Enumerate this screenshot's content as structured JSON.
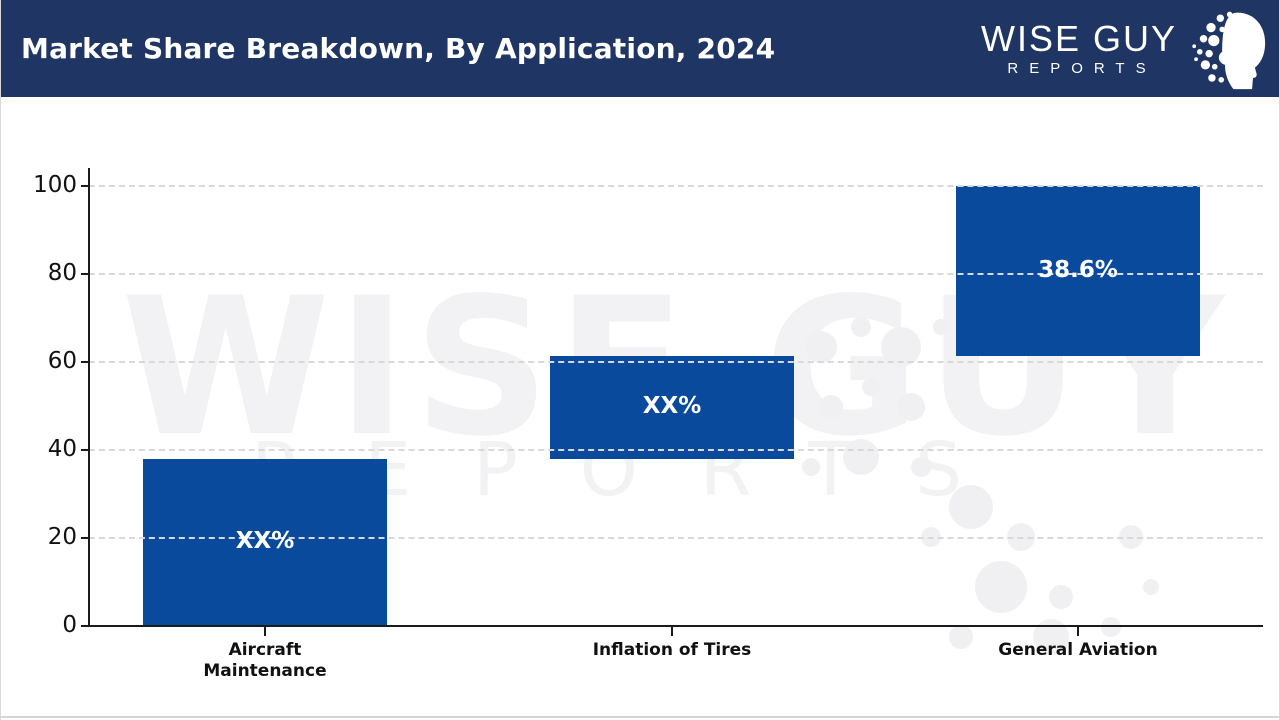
{
  "header": {
    "title": "Market Share Breakdown, By Application, 2024"
  },
  "logo": {
    "line1": "WISE GUY",
    "line2": "REPORTS"
  },
  "watermark": {
    "line1": "WISE GUY",
    "line2": "REPORTS"
  },
  "chart_data": {
    "type": "bar",
    "subtype": "waterfall",
    "title": "Market Share Breakdown, By Application, 2024",
    "categories": [
      "Aircraft Maintenance",
      "Inflation of Tires",
      "General Aviation"
    ],
    "categories_lines": [
      [
        "Aircraft",
        "Maintenance"
      ],
      [
        "Inflation of Tires"
      ],
      [
        "General Aviation"
      ]
    ],
    "segments": [
      {
        "category": "Aircraft Maintenance",
        "start": 0,
        "end": 38,
        "label": "XX%"
      },
      {
        "category": "Inflation of Tires",
        "start": 38,
        "end": 61.4,
        "label": "XX%"
      },
      {
        "category": "General Aviation",
        "start": 61.4,
        "end": 100,
        "label": "38.6%"
      }
    ],
    "known_values": {
      "General Aviation": 38.6
    },
    "yticks": [
      0,
      20,
      40,
      60,
      80,
      100
    ],
    "ylim": [
      0,
      105
    ],
    "grid": true,
    "gridline_style": "dashed",
    "bar_color": "#094a9d",
    "header_color": "#1f3564",
    "label_color": "#ffffff"
  }
}
